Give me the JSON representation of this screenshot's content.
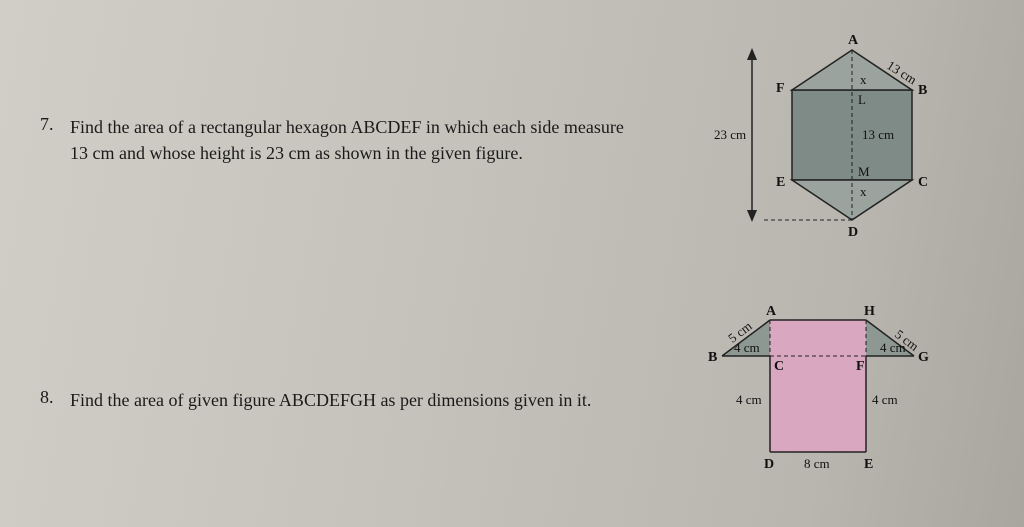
{
  "problems": [
    {
      "number": "7.",
      "text": "Find the area of a rectangular hexagon ABCDEF in which each side measure 13 cm and whose height is 23 cm as shown in the given figure."
    },
    {
      "number": "8.",
      "text": "Find the area of given figure ABCDEFGH as per dimensions given in it."
    }
  ],
  "fig7": {
    "height_label": "23 cm",
    "side_label": "13 cm",
    "inner_label": "13 cm",
    "x_label": "x",
    "vertices": {
      "A": "A",
      "B": "B",
      "C": "C",
      "D": "D",
      "E": "E",
      "F": "F",
      "L": "L",
      "M": "M"
    },
    "fill_rect": "#7f8b86",
    "fill_tri": "#9aa39e",
    "stroke": "#222",
    "dash": "4,3"
  },
  "fig8": {
    "vertices": {
      "A": "A",
      "B": "B",
      "C": "C",
      "D": "D",
      "E": "E",
      "F": "F",
      "G": "G",
      "H": "H"
    },
    "d_AB": "5 cm",
    "d_BC_h": "4 cm",
    "d_CD": "4 cm",
    "d_DE": "8 cm",
    "d_EF": "4 cm",
    "d_FG_h": "4 cm",
    "d_GH": "5 cm",
    "fill_sq": "#d9a8c0",
    "fill_tri": "#8e9893",
    "stroke": "#222",
    "dash": "4,3"
  }
}
